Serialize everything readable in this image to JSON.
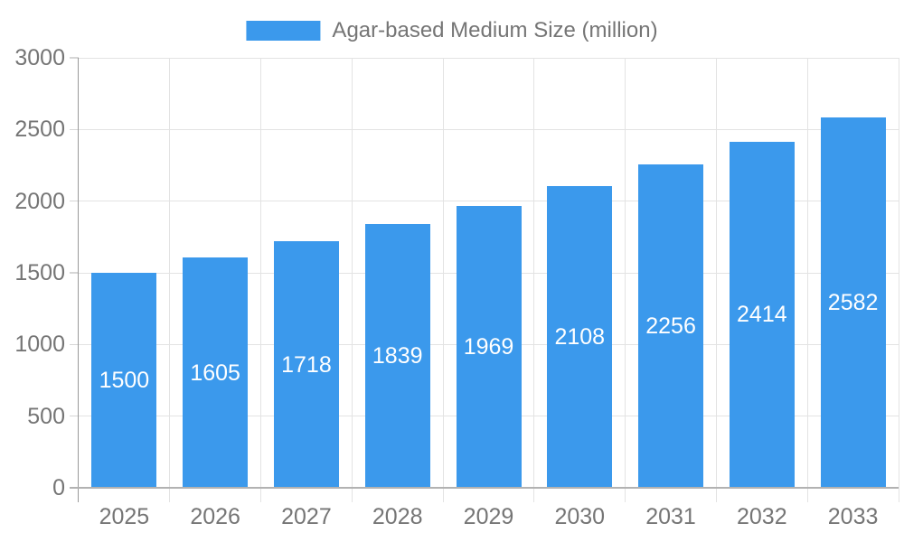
{
  "chart_data": {
    "type": "bar",
    "title": "Agar-based Medium Size (million)",
    "categories": [
      "2025",
      "2026",
      "2027",
      "2028",
      "2029",
      "2030",
      "2031",
      "2032",
      "2033"
    ],
    "values": [
      1500,
      1605,
      1718,
      1839,
      1969,
      2108,
      2256,
      2414,
      2582
    ],
    "xlabel": "",
    "ylabel": "",
    "ylim": [
      0,
      3000
    ],
    "ytick_step": 500,
    "ytick_labels": [
      "0",
      "500",
      "1000",
      "1500",
      "2000",
      "2500",
      "3000"
    ],
    "grid": true,
    "legend_position": "top-center",
    "bar_color": "#3b99ec",
    "bar_label_color": "#ffffff",
    "axis_label_color": "#757575",
    "gridline_color": "#e3e3e3"
  }
}
